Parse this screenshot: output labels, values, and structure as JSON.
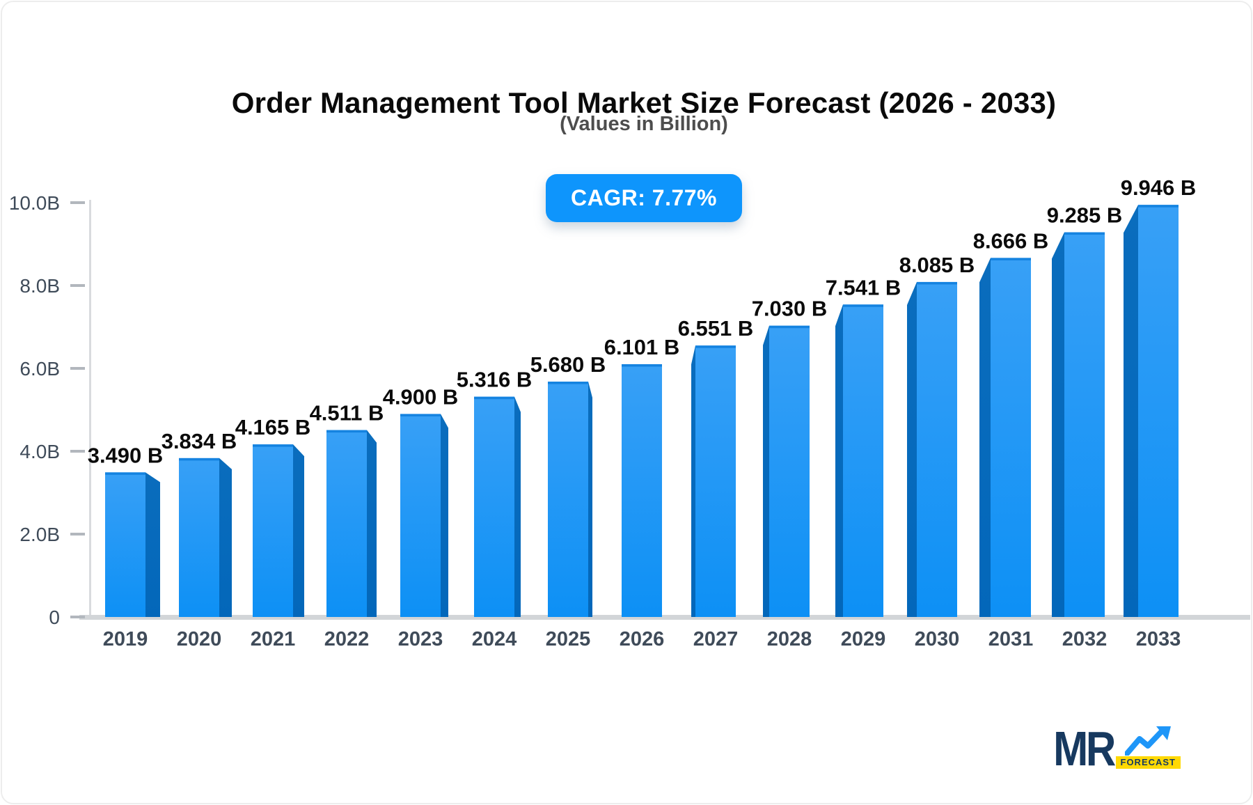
{
  "page": {
    "title": "Order Management Tool Market Size Forecast (2026 - 2033)",
    "subtitle": "(Values in Billion)",
    "cagr_badge": "CAGR: 7.77%"
  },
  "chart_data": {
    "type": "bar",
    "style": "3d-column-perspective",
    "title": "Order Management Tool Market Size Forecast (2026 - 2033)",
    "subtitle": "(Values in Billion)",
    "cagr_label": "CAGR: 7.77%",
    "categories": [
      "2019",
      "2020",
      "2021",
      "2022",
      "2023",
      "2024",
      "2025",
      "2026",
      "2027",
      "2028",
      "2029",
      "2030",
      "2031",
      "2032",
      "2033"
    ],
    "values": [
      3.49,
      3.834,
      4.165,
      4.511,
      4.9,
      5.316,
      5.68,
      6.101,
      6.551,
      7.03,
      7.541,
      8.085,
      8.666,
      9.285,
      9.946
    ],
    "value_labels": [
      "3.490 B",
      "3.834 B",
      "4.165 B",
      "4.511 B",
      "4.900 B",
      "5.316 B",
      "5.680 B",
      "6.101 B",
      "6.551 B",
      "7.030 B",
      "7.541 B",
      "8.085 B",
      "8.666 B",
      "9.285 B",
      "9.946 B"
    ],
    "ylim": [
      0,
      10
    ],
    "y_ticks": [
      0,
      2,
      4,
      6,
      8,
      10
    ],
    "y_tick_labels": [
      "0",
      "2.0B",
      "4.0B",
      "6.0B",
      "8.0B",
      "10.0B"
    ],
    "grid": false,
    "legend": false
  },
  "logo": {
    "mr": "MR",
    "forecast": "FORECAST",
    "arrow_icon": "zigzag-up-trend-arrow"
  },
  "colors": {
    "bar_face_top": "#38a0f6",
    "bar_face_bottom": "#0d90f5",
    "bar_top_edge": "#1583e0",
    "bar_side_top": "#0a6dbd",
    "bar_side_bottom": "#0367ba",
    "axis_line": "#d9dbde",
    "baseline": "#d2d5d8",
    "tick": "#b2b7bd",
    "axis_text": "#3f4b59",
    "value_text": "#0b0b0b",
    "badge_bg": "#0e95fc",
    "badge_text": "#ffffff",
    "title_text": "#0a0a0a",
    "subtitle_text": "#4d4d4d",
    "logo_navy": "#17395f",
    "logo_blue": "#1e96f8",
    "logo_yellow": "#ffd903"
  }
}
